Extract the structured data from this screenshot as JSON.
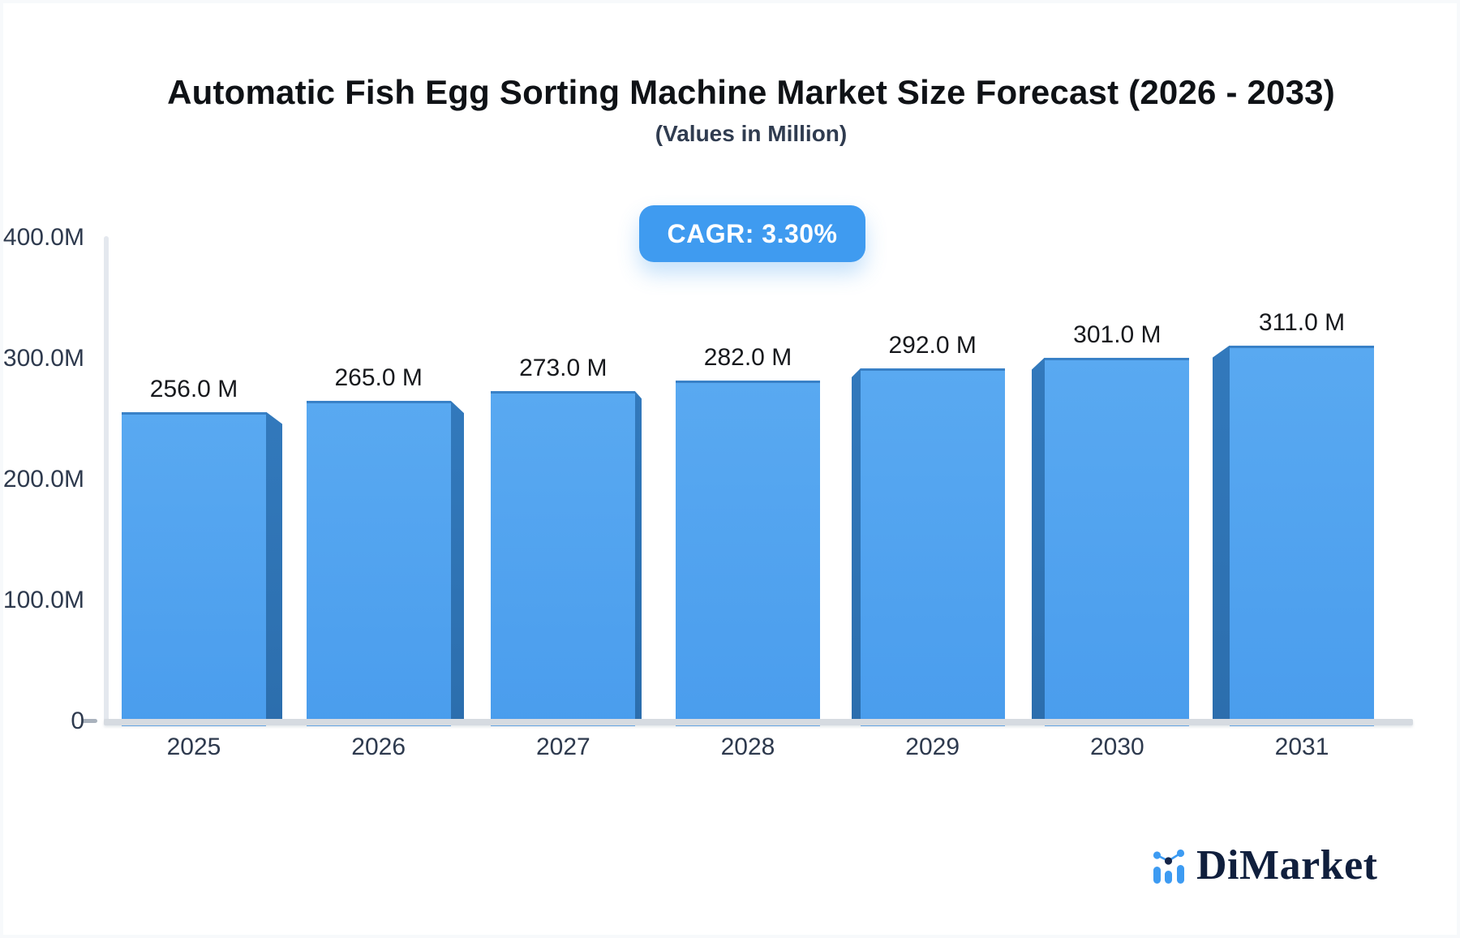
{
  "title": "Automatic Fish Egg Sorting Machine Market Size Forecast (2026 - 2033)",
  "subtitle": "(Values in Million)",
  "badge": {
    "label": "CAGR: 3.30%"
  },
  "chart_data": {
    "type": "bar",
    "title": "Automatic Fish Egg Sorting Machine Market Size Forecast (2026 - 2033)",
    "subtitle": "(Values in Million)",
    "categories": [
      "2025",
      "2026",
      "2027",
      "2028",
      "2029",
      "2030",
      "2031"
    ],
    "values": [
      256.0,
      265.0,
      273.0,
      282.0,
      292.0,
      301.0,
      311.0
    ],
    "value_labels": [
      "256.0 M",
      "265.0 M",
      "273.0 M",
      "282.0 M",
      "292.0 M",
      "301.0 M",
      "311.0 M"
    ],
    "cagr": "3.30%",
    "ylim": [
      0,
      400
    ],
    "yticks": [
      {
        "value": 400,
        "label": "400.0M"
      },
      {
        "value": 300,
        "label": "300.0M"
      },
      {
        "value": 200,
        "label": "200.0M"
      },
      {
        "value": 100,
        "label": "100.0M"
      },
      {
        "value": 0,
        "label": "0"
      }
    ],
    "gridlines": "none",
    "legend": "none",
    "bar_style": "3d-perspective",
    "bar_face_color_top": "#59a9f1",
    "bar_face_color_bottom": "#4a9ded",
    "bar_side_color_top": "#3279bc",
    "bar_side_color_bottom": "#2c6ead"
  },
  "logo": {
    "text": "DiMarket",
    "icon": "mini-bar-chart-logo-icon"
  },
  "colors": {
    "accent_blue": "#3f9bf0",
    "axis_gray": "#e4e8ee",
    "baseline_gray": "#d6dbe1",
    "tick_dash_gray": "#a9b2bd",
    "text_dark": "#17191d",
    "text_slate": "#2e3a4e",
    "logo_navy": "#101f3d",
    "logo_blue": "#3d9bf2"
  }
}
